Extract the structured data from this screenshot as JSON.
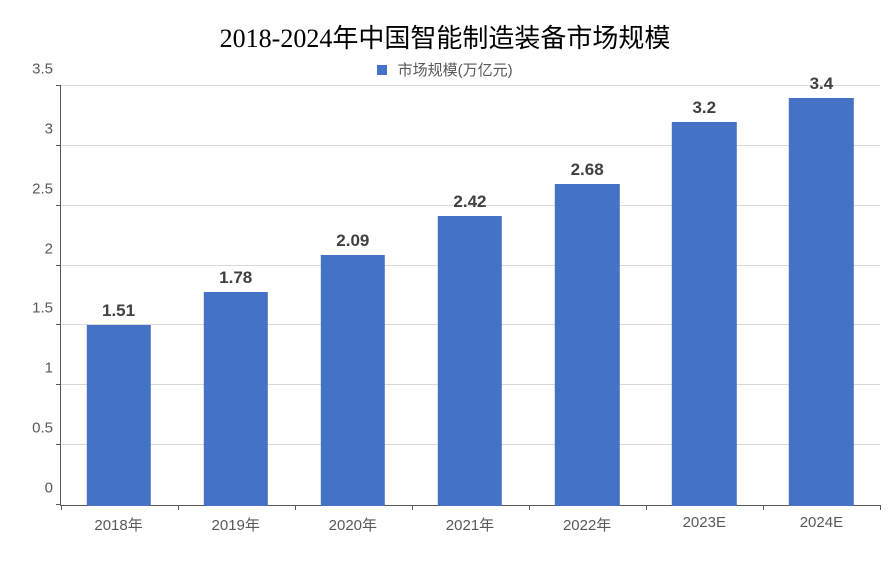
{
  "chart": {
    "type": "bar",
    "title": "2018-2024年中国智能制造装备市场规模",
    "title_fontsize": 26,
    "title_color": "#000000",
    "legend": {
      "label": "市场规模(万亿元)",
      "swatch_color": "#4472c4",
      "text_color": "#595959",
      "fontsize": 15
    },
    "categories": [
      "2018年",
      "2019年",
      "2020年",
      "2021年",
      "2022年",
      "2023E",
      "2024E"
    ],
    "values": [
      1.51,
      1.78,
      2.09,
      2.42,
      2.68,
      3.2,
      3.4
    ],
    "value_labels": [
      "1.51",
      "1.78",
      "2.09",
      "2.42",
      "2.68",
      "3.2",
      "3.4"
    ],
    "bar_color": "#4472c4",
    "bar_width_ratio": 0.55,
    "value_label_fontsize": 17,
    "value_label_color": "#404040",
    "y_axis": {
      "min": 0,
      "max": 3.5,
      "tick_step": 0.5,
      "tick_labels": [
        "0",
        "0.5",
        "1",
        "1.5",
        "2",
        "2.5",
        "3",
        "3.5"
      ],
      "label_fontsize": 15,
      "label_color": "#595959"
    },
    "x_axis": {
      "label_fontsize": 15,
      "label_color": "#595959"
    },
    "grid_color": "#d9d9d9",
    "axis_color": "#595959",
    "background_color": "#ffffff"
  }
}
